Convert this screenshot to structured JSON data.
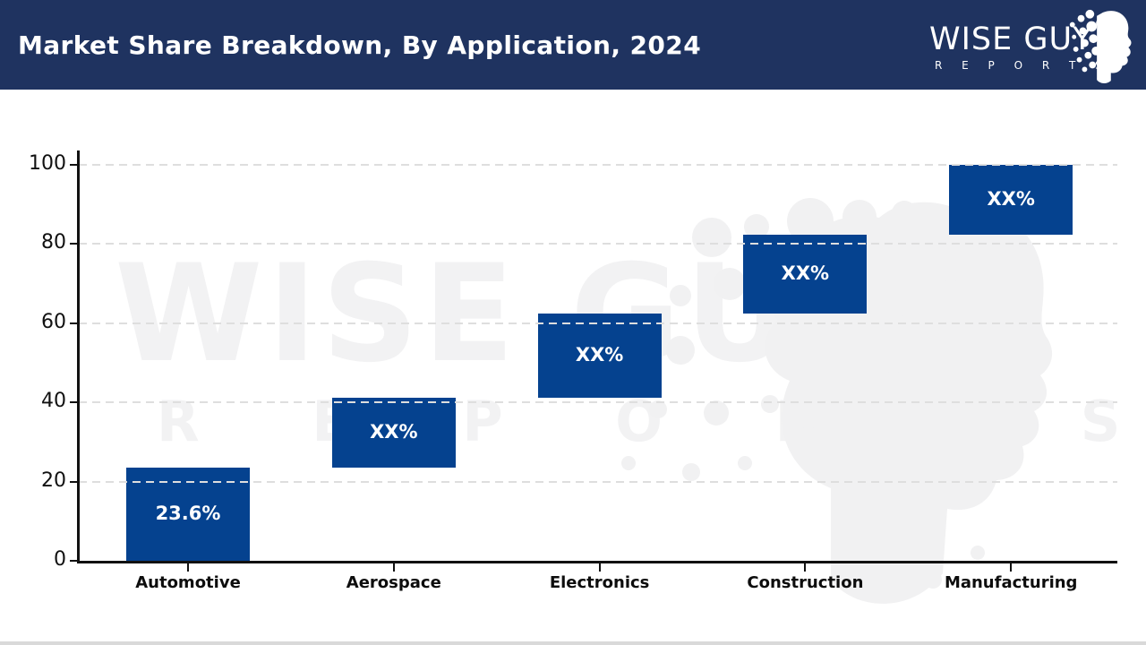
{
  "header": {
    "title": "Market Share Breakdown, By Application, 2024",
    "logo": {
      "line1": "WISE GUY",
      "line2": "R E P O R T S"
    }
  },
  "watermark": {
    "line1": "WISE GUY",
    "line2": "R E P O R T S"
  },
  "chart_data": {
    "type": "bar",
    "subtype": "waterfall",
    "title": "Market Share Breakdown, By Application, 2024",
    "categories": [
      "Automotive",
      "Aerospace",
      "Electronics",
      "Construction",
      "Manufacturing"
    ],
    "values": [
      23.6,
      17.6,
      21.2,
      20.0,
      17.6
    ],
    "cumulative": [
      23.6,
      41.2,
      62.4,
      82.4,
      100
    ],
    "bar_labels": [
      "23.6%",
      "XX%",
      "XX%",
      "XX%",
      "XX%"
    ],
    "yticks": [
      0,
      20,
      40,
      60,
      80,
      100
    ],
    "ylim": [
      0,
      103.6
    ],
    "xlabel": "",
    "ylabel": "",
    "grid": "horizontal-dashed",
    "legend": "none"
  },
  "colors": {
    "header_bg": "#1f3360",
    "bar": "#05428f",
    "bar_label": "#ffffff",
    "grid": "#dedede",
    "axis": "#111111",
    "watermark": "#f2f2f3",
    "footer_strip": "#d9d9d9"
  }
}
